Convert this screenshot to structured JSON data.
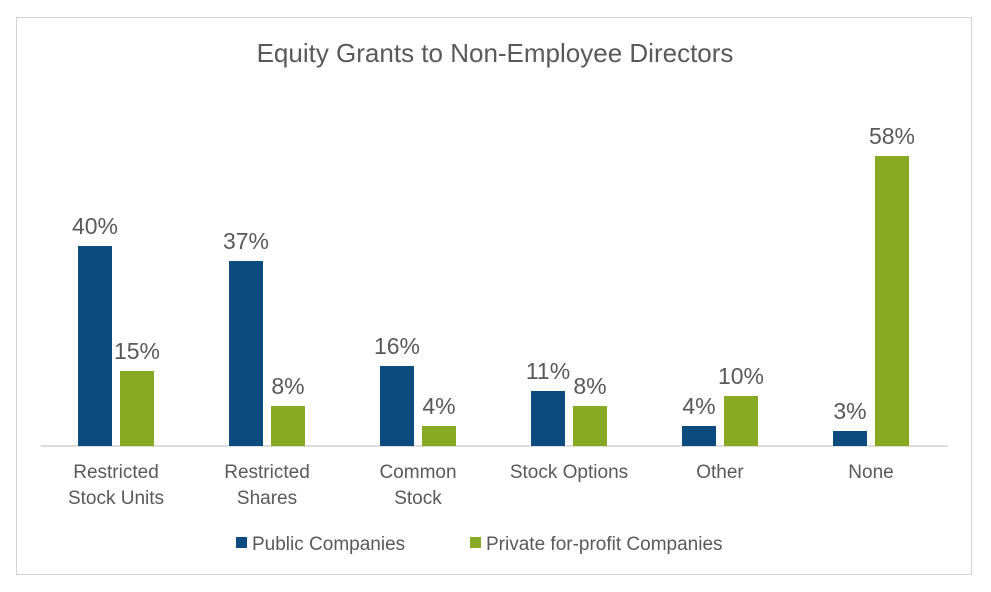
{
  "chart_data": {
    "type": "bar",
    "title": "Equity Grants to Non-Employee Directors",
    "xlabel": "",
    "ylabel": "",
    "ylim": [
      0,
      60
    ],
    "grid": false,
    "legend_position": "bottom",
    "categories": [
      [
        "Restricted",
        "Stock Units"
      ],
      [
        "Restricted",
        "Shares"
      ],
      [
        "Common",
        "Stock"
      ],
      [
        "Stock Options"
      ],
      [
        "Other"
      ],
      [
        "None"
      ]
    ],
    "series": [
      {
        "name": "Public Companies",
        "color": "#0b4b7d",
        "values": [
          40,
          37,
          16,
          11,
          4,
          3
        ],
        "labels": [
          "40%",
          "37%",
          "16%",
          "11%",
          "4%",
          "3%"
        ]
      },
      {
        "name": "Private for-profit Companies",
        "color": "#87a924",
        "values": [
          15,
          8,
          4,
          8,
          10,
          58
        ],
        "labels": [
          "15%",
          "8%",
          "4%",
          "8%",
          "10%",
          "58%"
        ]
      }
    ]
  }
}
